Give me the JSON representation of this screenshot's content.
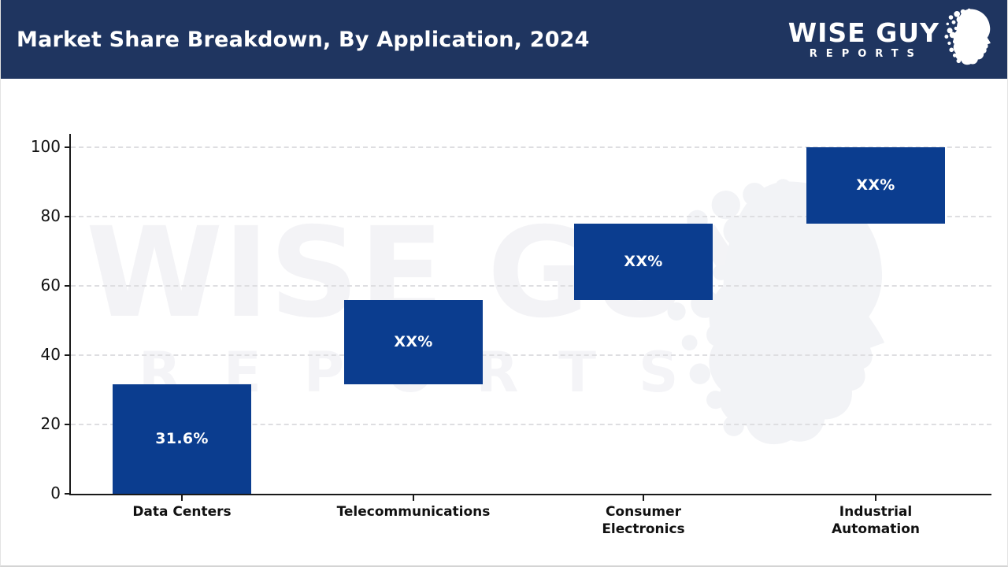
{
  "header": {
    "title": "Market Share Breakdown, By Application, 2024",
    "logo_line1": "WISE GUY",
    "logo_line2": "REPORTS"
  },
  "watermark": {
    "line1": "WISE GUY",
    "line2": "REPORTS"
  },
  "chart_data": {
    "type": "bar",
    "subtype": "waterfall",
    "title": "Market Share Breakdown, By Application, 2024",
    "categories": [
      "Data Centers",
      "Telecommunications",
      "Consumer\nElectronics",
      "Industrial\nAutomation"
    ],
    "series": [
      {
        "name": "Market share (%)",
        "starts": [
          0,
          31.6,
          56,
          78
        ],
        "ends": [
          31.6,
          56,
          78,
          100
        ],
        "increments": [
          31.6,
          24.4,
          22,
          22
        ]
      }
    ],
    "bar_labels": [
      "31.6%",
      "XX%",
      "XX%",
      "XX%"
    ],
    "yticks": [
      0,
      20,
      40,
      60,
      80,
      100
    ],
    "ylim": [
      0,
      100
    ],
    "xlabel": "",
    "ylabel": "",
    "grid": "horizontal-dashed",
    "legend": "none"
  },
  "colors": {
    "header_bg": "#1f3560",
    "bar": "#0b3d8f",
    "bar_label": "#ffffff",
    "grid": "#dedee1",
    "axis": "#1a1a1a",
    "watermark": "#f3f3f6"
  }
}
